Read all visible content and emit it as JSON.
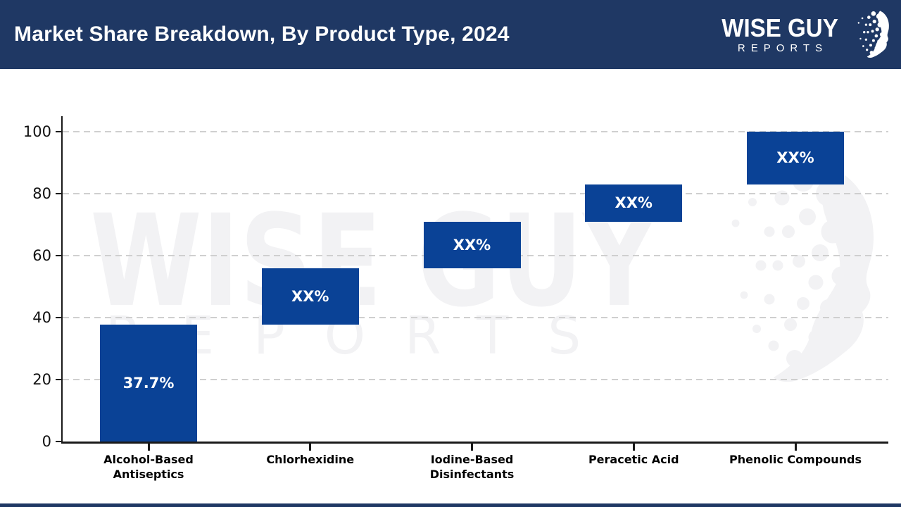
{
  "header": {
    "title": "Market Share Breakdown, By Product Type, 2024",
    "bg_color": "#1f3864",
    "logo": {
      "line1": "WISE GUY",
      "line2": "REPORTS",
      "color": "#ffffff",
      "head_icon": "dotted-head-profile"
    }
  },
  "watermark": {
    "line1": "WISE GUY",
    "line2": "REPORTS",
    "color": "#f2f2f4",
    "head_icon": "dotted-head-profile"
  },
  "chart_data": {
    "type": "bar",
    "subtype": "waterfall",
    "title": "Market Share Breakdown, By Product Type, 2024",
    "xlabel": "",
    "ylabel": "",
    "categories": [
      "Alcohol-Based\nAntiseptics",
      "Chlorhexidine",
      "Iodine-Based\nDisinfectants",
      "Peracetic Acid",
      "Phenolic Compounds"
    ],
    "segments": [
      {
        "category": "Alcohol-Based Antiseptics",
        "start": 0,
        "end": 37.7,
        "label": "37.7%"
      },
      {
        "category": "Chlorhexidine",
        "start": 37.7,
        "end": 56,
        "label": "XX%"
      },
      {
        "category": "Iodine-Based Disinfectants",
        "start": 56,
        "end": 71,
        "label": "XX%"
      },
      {
        "category": "Peracetic Acid",
        "start": 71,
        "end": 83,
        "label": "XX%"
      },
      {
        "category": "Phenolic Compounds",
        "start": 83,
        "end": 100,
        "label": "XX%"
      }
    ],
    "yticks": [
      0,
      20,
      40,
      60,
      80,
      100
    ],
    "ylim": [
      0,
      105
    ],
    "grid": "horizontal-dashed",
    "legend": "none",
    "bar_color": "#0a4296",
    "bar_label_color": "#ffffff",
    "grid_color": "#cfcfcf",
    "axis_color": "#1a1a1a"
  },
  "footer": {
    "bar_color": "#1f3864"
  }
}
